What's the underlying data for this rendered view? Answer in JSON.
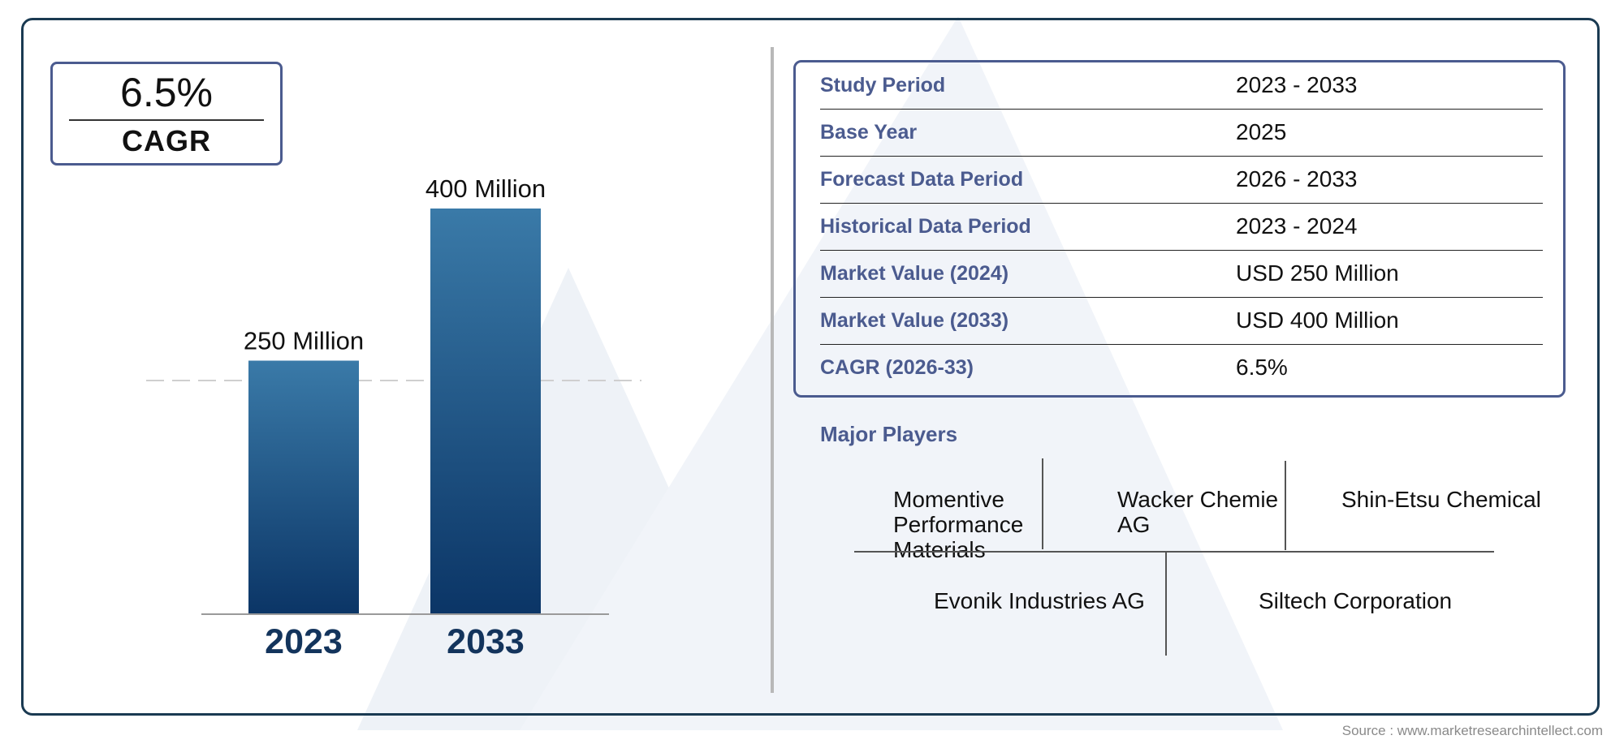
{
  "cagr_badge": {
    "value": "6.5%",
    "label": "CAGR"
  },
  "chart_data": {
    "type": "bar",
    "categories": [
      "2023",
      "2033"
    ],
    "values": [
      250,
      400
    ],
    "value_labels": [
      "250 Million",
      "400 Million"
    ],
    "unit": "Million",
    "ylim": [
      0,
      400
    ],
    "grid": false,
    "colors": {
      "bar_top": "#3a7aa8",
      "bar_bottom": "#0b3566",
      "category_text": "#13345c"
    }
  },
  "info_table": {
    "rows": [
      {
        "label": "Study Period",
        "value": "2023 - 2033"
      },
      {
        "label": "Base Year",
        "value": "2025"
      },
      {
        "label": "Forecast Data Period",
        "value": "2026 - 2033"
      },
      {
        "label": "Historical Data Period",
        "value": "2023 - 2024"
      },
      {
        "label": "Market Value (2024)",
        "value": "USD 250 Million"
      },
      {
        "label": "Market Value (2033)",
        "value": "USD 400 Million"
      },
      {
        "label": "CAGR (2026-33)",
        "value": "6.5%"
      }
    ]
  },
  "players": {
    "title": "Major Players",
    "list": [
      "Momentive Performance Materials",
      "Wacker Chemie AG",
      "Shin-Etsu Chemical",
      "Evonik Industries AG",
      "Siltech Corporation"
    ]
  },
  "source": "Source : www.marketresearchintellect.com",
  "colors": {
    "frame": "#1a3a52",
    "accent": "#4b5b8f"
  }
}
